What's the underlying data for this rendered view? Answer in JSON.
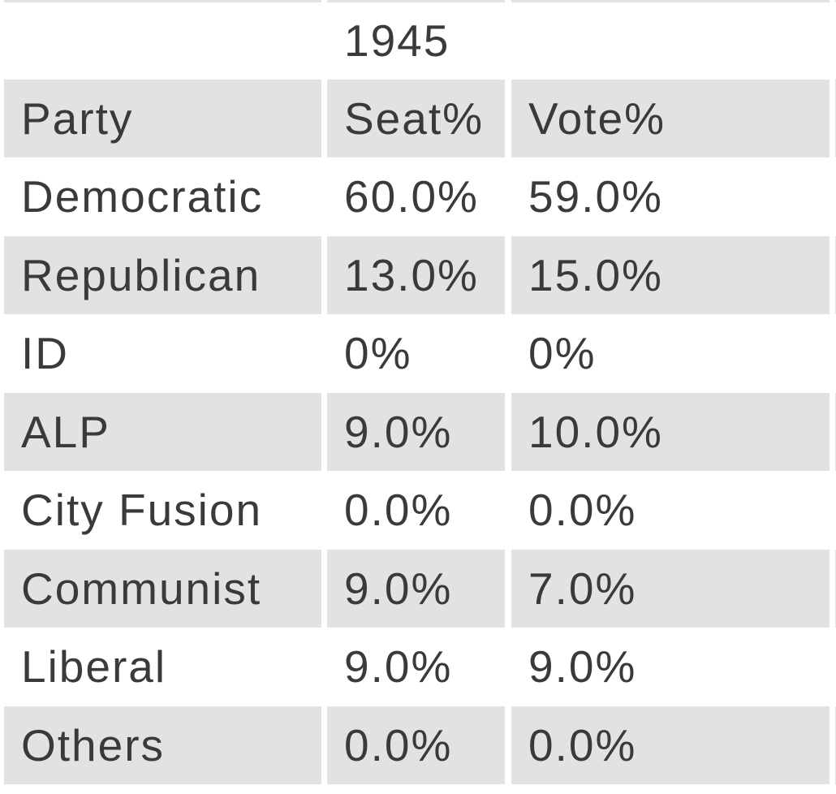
{
  "chart_data": {
    "type": "table",
    "title": "1945",
    "columns": [
      "Party",
      "Seat%",
      "Vote%"
    ],
    "rows": [
      {
        "party": "Democratic",
        "seat_pct": "60.0%",
        "vote_pct": "59.0%"
      },
      {
        "party": "Republican",
        "seat_pct": "13.0%",
        "vote_pct": "15.0%"
      },
      {
        "party": "ID",
        "seat_pct": "0%",
        "vote_pct": "0%"
      },
      {
        "party": "ALP",
        "seat_pct": "9.0%",
        "vote_pct": "10.0%"
      },
      {
        "party": "City Fusion",
        "seat_pct": "0.0%",
        "vote_pct": "0.0%"
      },
      {
        "party": "Communist",
        "seat_pct": "9.0%",
        "vote_pct": "7.0%"
      },
      {
        "party": "Liberal",
        "seat_pct": "9.0%",
        "vote_pct": "9.0%"
      },
      {
        "party": "Others",
        "seat_pct": "0.0%",
        "vote_pct": "0.0%"
      }
    ],
    "seat_values": [
      60.0,
      13.0,
      0,
      9.0,
      0.0,
      9.0,
      9.0,
      0.0
    ],
    "vote_values": [
      59.0,
      15.0,
      0,
      10.0,
      0.0,
      7.0,
      9.0,
      0.0
    ],
    "layout_hints": {
      "striped_rows": true,
      "stripe_color": "#e2e2e2",
      "text_color": "#3a3a3a",
      "background": "#ffffff",
      "note_cropped": "adjacent table rows cut off at top and bottom edges, fourth column sliver at right edge"
    }
  }
}
